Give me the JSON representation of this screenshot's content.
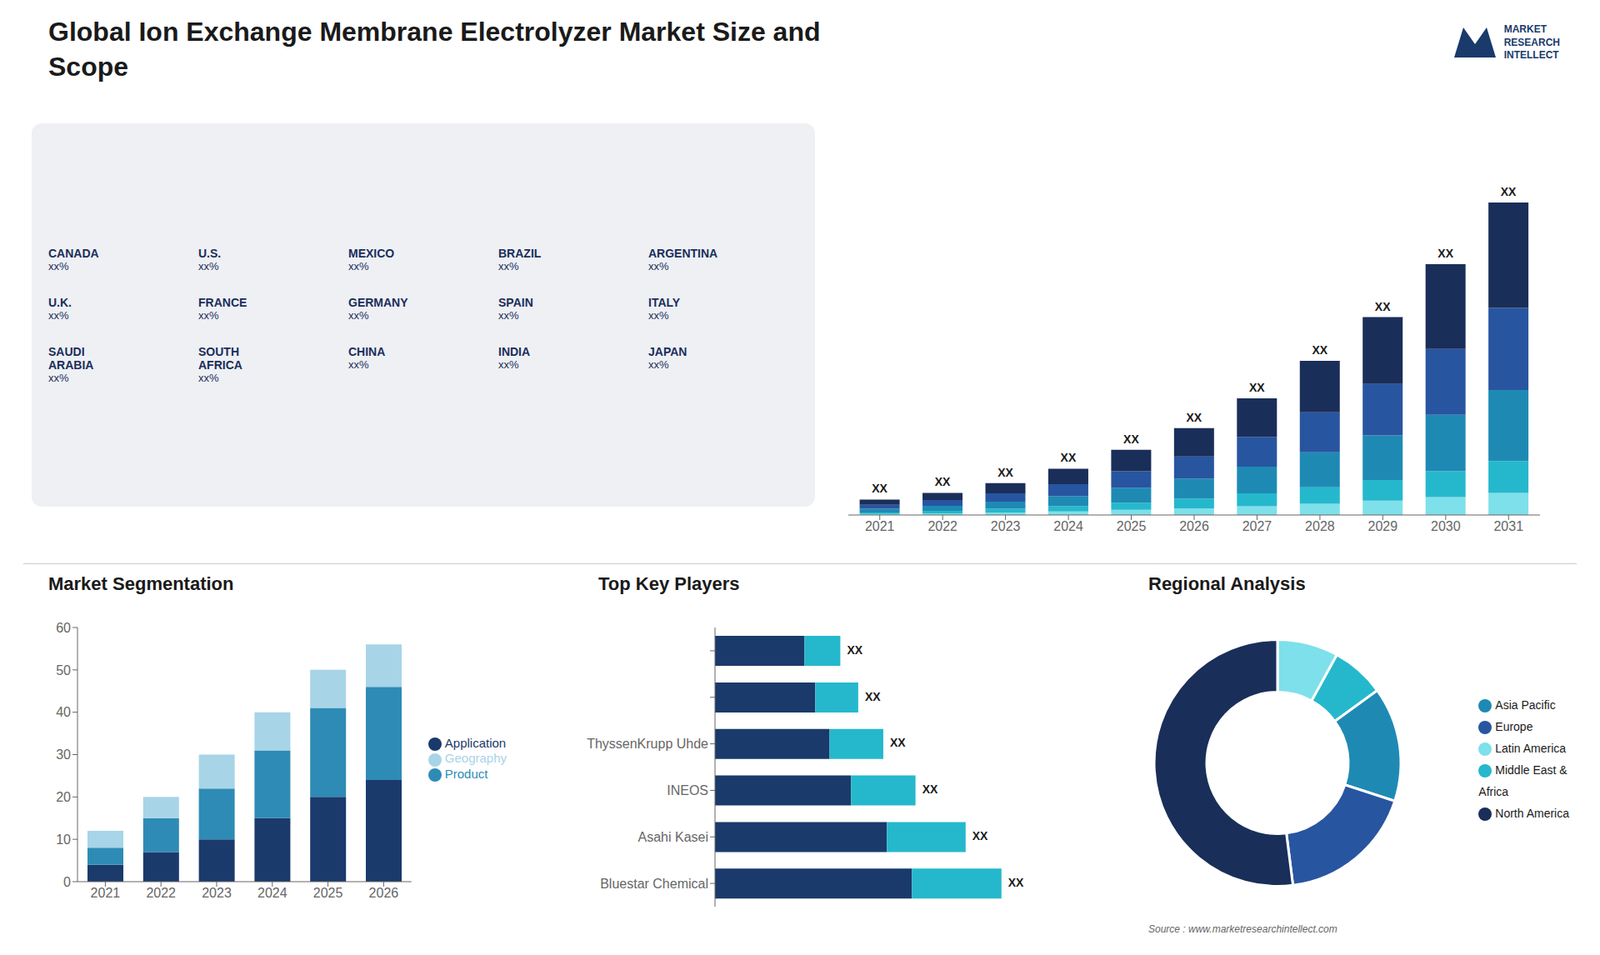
{
  "title": "Global Ion Exchange Membrane Electrolyzer Market Size and\nScope",
  "annotations": [
    {
      "text": "MARKET\nRESEARCH\nINTELLECT"
    },
    {
      "text": "Source : www.marketresearchintellect.com"
    },
    {
      "text": "CANADA",
      "label": "xx%"
    },
    {
      "text": "U.S.",
      "label": "xx%"
    },
    {
      "text": "MEXICO",
      "label": "xx%"
    },
    {
      "text": "BRAZIL",
      "label": "xx%"
    },
    {
      "text": "ARGENTINA",
      "label": "xx%"
    },
    {
      "text": "U.K.",
      "label": "xx%"
    },
    {
      "text": "FRANCE",
      "label": "xx%"
    },
    {
      "text": "GERMANY",
      "label": "xx%"
    },
    {
      "text": "SPAIN",
      "label": "xx%"
    },
    {
      "text": "ITALY",
      "label": "xx%"
    },
    {
      "text": "SAUDI\nARABIA",
      "label": "xx%"
    },
    {
      "text": "SOUTH\nAFRICA",
      "label": "xx%"
    },
    {
      "text": "CHINA",
      "label": "xx%"
    },
    {
      "text": "INDIA",
      "label": "xx%"
    },
    {
      "text": "JAPAN",
      "label": "xx%"
    }
  ],
  "chart_data": [
    {
      "type": "bar",
      "stacked": true,
      "categories": [
        "2021",
        "2022",
        "2023",
        "2024",
        "2025",
        "2026",
        "2027",
        "2028",
        "2029",
        "2030",
        "2031"
      ],
      "series": [
        {
          "name": "Latin America",
          "color": "#7ee0ea",
          "values": [
            0.2,
            0.3,
            0.5,
            0.7,
            1.0,
            1.3,
            1.7,
            2.2,
            2.8,
            3.5,
            4.3
          ]
        },
        {
          "name": "Middle East & Africa",
          "color": "#25b8cc",
          "values": [
            0.3,
            0.5,
            0.7,
            1.0,
            1.4,
            1.9,
            2.5,
            3.2,
            4.0,
            5.0,
            6.2
          ]
        },
        {
          "name": "Asia Pacific",
          "color": "#1e8ab4",
          "values": [
            0.7,
            1.0,
            1.4,
            2.0,
            2.9,
            3.9,
            5.2,
            6.8,
            8.7,
            11.0,
            13.8
          ]
        },
        {
          "name": "Europe",
          "color": "#2855a0",
          "values": [
            0.8,
            1.1,
            1.6,
            2.3,
            3.2,
            4.3,
            5.8,
            7.8,
            10.0,
            12.8,
            16.0
          ]
        },
        {
          "name": "North America",
          "color": "#1a2e5a",
          "values": [
            1.0,
            1.4,
            2.0,
            3.0,
            4.2,
            5.5,
            7.5,
            10.0,
            13.0,
            16.5,
            20.5
          ]
        }
      ],
      "ylim": [
        0,
        77.824
      ],
      "tick_labels": "x",
      "annotations": [
        "XX",
        "XX",
        "XX",
        "XX",
        "XX",
        "XX",
        "XX",
        "XX",
        "XX",
        "XX",
        "XX"
      ]
    },
    {
      "type": "bar",
      "stacked": true,
      "title": "Market Segmentation",
      "categories": [
        "2021",
        "2022",
        "2023",
        "2024",
        "2025",
        "2026"
      ],
      "series": [
        {
          "name": "Application",
          "color": "#1a3a6b",
          "values": [
            4,
            7,
            10,
            15,
            20,
            24
          ]
        },
        {
          "name": "Product",
          "color": "#2e8bb5",
          "values": [
            4,
            8,
            12,
            16,
            21,
            22
          ]
        },
        {
          "name": "Geography",
          "color": "#a8d4e8",
          "values": [
            4,
            5,
            8,
            9,
            9,
            10
          ]
        }
      ],
      "ylim": [
        0,
        60
      ],
      "yticks": [
        0,
        10,
        20,
        30,
        40,
        50,
        60
      ],
      "legend": "right"
    },
    {
      "type": "bar",
      "stacked": true,
      "orientation": "horizontal",
      "title": "Top Key Players",
      "categories": [
        "Bluestar Chemical",
        "Asahi Kasei",
        "INEOS",
        "ThyssenKrupp Uhde",
        null,
        null
      ],
      "series": [
        {
          "color": "#1a3a6b",
          "values": [
            5.5,
            4.8,
            3.8,
            3.2,
            2.8,
            2.5
          ]
        },
        {
          "color": "#25b8cc",
          "values": [
            2.5,
            2.2,
            1.8,
            1.5,
            1.2,
            1.0
          ]
        }
      ],
      "xlim": [
        0,
        10.24
      ],
      "tick_labels": "y",
      "annotations": [
        "XX",
        "XX",
        "XX",
        "XX",
        "XX",
        "XX"
      ]
    },
    {
      "type": "pie",
      "title": "Regional Analysis",
      "categories": [
        "Latin America",
        "Middle East &\nAfrica",
        "Asia Pacific",
        "Europe",
        "North America"
      ],
      "values": [
        8,
        7,
        15,
        18,
        52
      ],
      "colors": [
        "#7ee0ea",
        "#25b8cc",
        "#1e8ab4",
        "#2855a0",
        "#1a2e5a"
      ],
      "legend": "right"
    }
  ]
}
